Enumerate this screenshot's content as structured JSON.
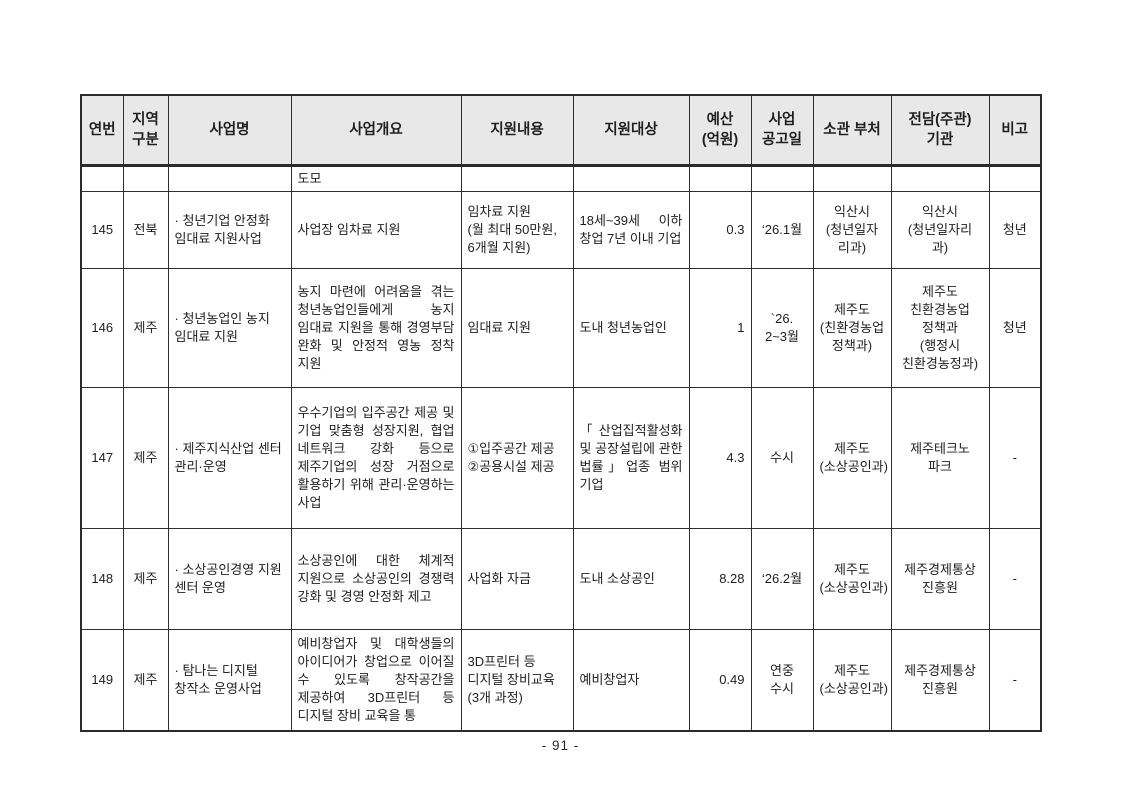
{
  "table": {
    "headers": {
      "no": "연번",
      "region": "지역\n구분",
      "name": "사업명",
      "overview": "사업개요",
      "support": "지원내용",
      "target": "지원대상",
      "budget": "예산\n(억원)",
      "date": "사업\n공고일",
      "ministry": "소관 부처",
      "agency": "전담(주관)\n기관",
      "note": "비고"
    },
    "carryover_row": {
      "overview": "도모"
    },
    "rows": [
      {
        "no": "145",
        "region": "전북",
        "name": "· 청년기업 안정화\n임대료 지원사업",
        "overview": "사업장 임차료 지원",
        "support": "임차료 지원\n(월 최대 50만원,\n6개월 지원)",
        "target": "18세~39세 이하 창업 7년 이내 기업",
        "budget": "0.3",
        "date": "‘26.1월",
        "ministry": "익산시\n(청년일자\n리과)",
        "agency": "익산시\n(청년일자리\n과)",
        "note": "청년"
      },
      {
        "no": "146",
        "region": "제주",
        "name": "· 청년농업인 농지\n임대료 지원",
        "overview": "농지 마련에 어려움을 겪는 청년농업인들에게 농지 임대료 지원을 통해 경영부담 완화 및 안정적 영농 정착 지원",
        "support": "임대료 지원",
        "target": "도내 청년농업인",
        "budget": "1",
        "date": "`26.\n2~3월",
        "ministry": "제주도\n(친환경농업\n정책과)",
        "agency": "제주도\n친환경농업\n정책과\n(행정시\n친환경농정과)",
        "note": "청년"
      },
      {
        "no": "147",
        "region": "제주",
        "name": "· 제주지식산업 센터\n관리·운영",
        "overview": "우수기업의 입주공간 제공 및 기업 맞춤형 성장지원, 협업 네트워크 강화 등으로 제주기업의 성장 거점으로 활용하기 위해 관리·운영하는 사업",
        "support": "①입주공간 제공\n②공용시설 제공",
        "target": "「산업집적활성화 및 공장설립에 관한 법률」업종 범위 기업",
        "budget": "4.3",
        "date": "수시",
        "ministry": "제주도\n(소상공인과)",
        "agency": "제주테크노\n파크",
        "note": "-"
      },
      {
        "no": "148",
        "region": "제주",
        "name": "· 소상공인경영 지원\n센터 운영",
        "overview": "소상공인에 대한 체계적 지원으로 소상공인의 경쟁력 강화 및 경영 안정화 제고",
        "support": "사업화 자금",
        "target": "도내 소상공인",
        "budget": "8.28",
        "date": "‘26.2월",
        "ministry": "제주도\n(소상공인과)",
        "agency": "제주경제통상\n진흥원",
        "note": "-"
      },
      {
        "no": "149",
        "region": "제주",
        "name": "· 탐나는 디지털\n창작소 운영사업",
        "overview": "예비창업자 및 대학생들의 아이디어가 창업으로 이어질 수 있도록 창작공간을 제공하여 3D프린터 등 디지털 장비 교육을 통",
        "support": "3D프린터 등\n디지털 장비교육\n(3개 과정)",
        "target": "예비창업자",
        "budget": "0.49",
        "date": "연중\n수시",
        "ministry": "제주도\n(소상공인과)",
        "agency": "제주경제통상\n진흥원",
        "note": "-"
      }
    ]
  },
  "footer": {
    "page_number": "- 91 -"
  }
}
